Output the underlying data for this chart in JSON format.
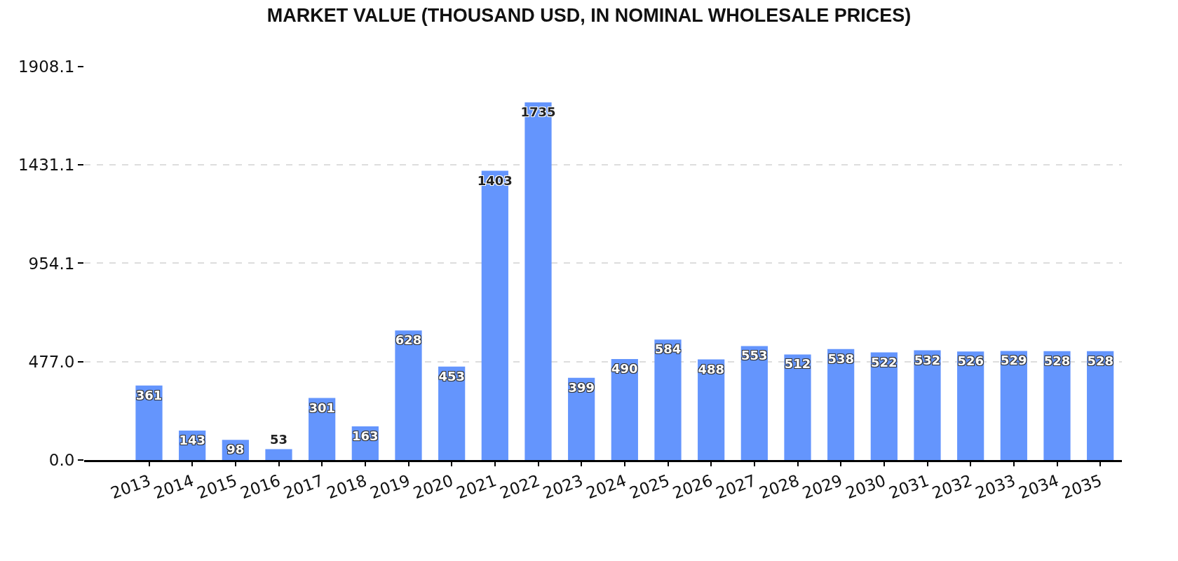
{
  "chart_data": {
    "type": "bar",
    "title": "MARKET VALUE (THOUSAND USD, IN NOMINAL WHOLESALE PRICES)",
    "categories": [
      "2013",
      "2014",
      "2015",
      "2016",
      "2017",
      "2018",
      "2019",
      "2020",
      "2021",
      "2022",
      "2023",
      "2024",
      "2025",
      "2026",
      "2027",
      "2028",
      "2029",
      "2030",
      "2031",
      "2032",
      "2033",
      "2034",
      "2035"
    ],
    "values": [
      361,
      143,
      98,
      53,
      301,
      163,
      628,
      453,
      1403,
      1735,
      399,
      490,
      584,
      488,
      553,
      512,
      538,
      522,
      532,
      526,
      529,
      528,
      528
    ],
    "color": "#6495fd",
    "ylim": [
      0,
      1908.1
    ],
    "yticks": [
      {
        "value": 0,
        "label": "0.0"
      },
      {
        "value": 477,
        "label": "477.0"
      },
      954.1,
      1431.1,
      1908.1
    ],
    "grid": "y",
    "data_labels": true
  }
}
